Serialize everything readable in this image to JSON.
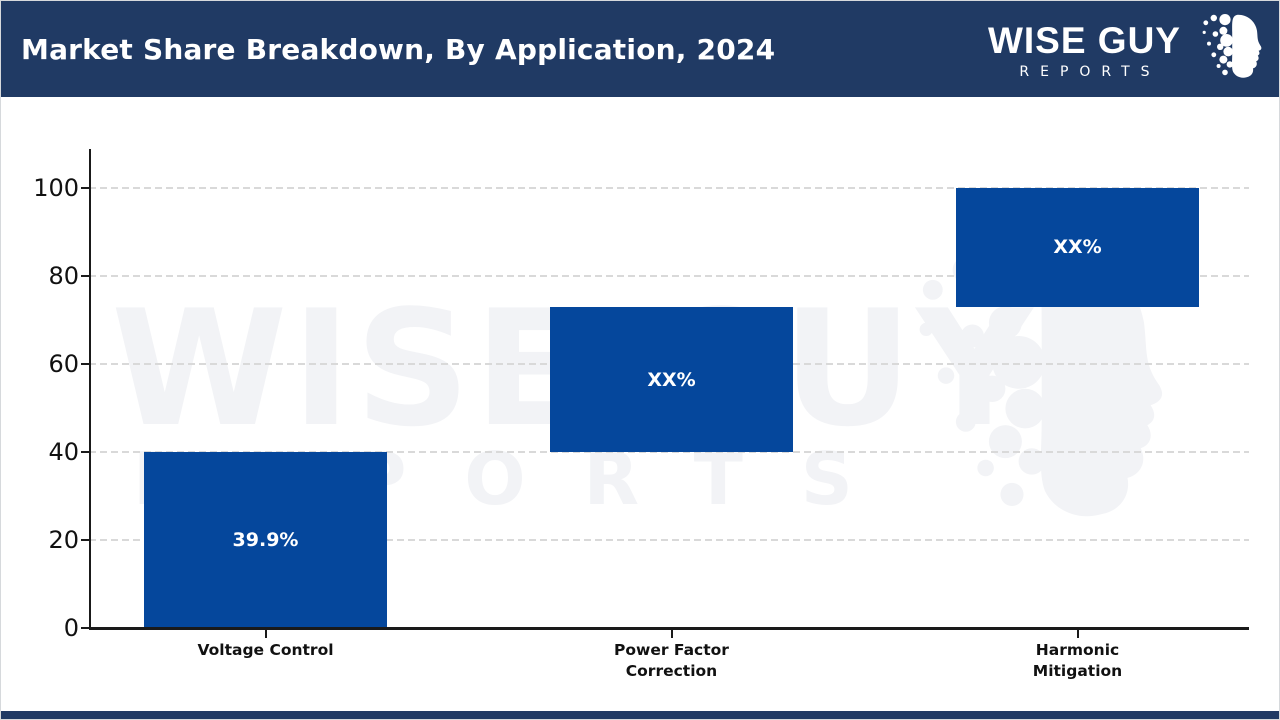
{
  "header": {
    "title": "Market Share Breakdown, By Application, 2024",
    "logo": {
      "brand": "WISE GUY",
      "sub": "REPORTS"
    }
  },
  "watermark": {
    "brand": "WISE GUY",
    "sub": "REPORTS"
  },
  "chart_data": {
    "type": "bar",
    "subtype": "waterfall",
    "title": "Market Share Breakdown, By Application, 2024",
    "xlabel": "",
    "ylabel": "",
    "ylim": [
      0,
      105
    ],
    "yticks": [
      0,
      20,
      40,
      60,
      80,
      100
    ],
    "grid": "horizontal-dashed",
    "legend": "none",
    "categories": [
      "Voltage Control",
      "Power Factor\nCorrection",
      "Harmonic\nMitigation"
    ],
    "bars": [
      {
        "category": "Voltage Control",
        "label": "39.9%",
        "start": 0,
        "end": 39.9
      },
      {
        "category": "Power Factor Correction",
        "label": "XX%",
        "start": 39.9,
        "end": 73
      },
      {
        "category": "Harmonic Mitigation",
        "label": "XX%",
        "start": 73,
        "end": 100
      }
    ],
    "bar_color": "#05479c",
    "bar_label_color": "#ffffff"
  },
  "colors": {
    "header_bg": "#203a64",
    "footer_bg": "#203a64",
    "axis": "#1a1a1a",
    "grid": "#d9d9d9",
    "watermark": "#f2f3f6",
    "background": "#ffffff"
  }
}
